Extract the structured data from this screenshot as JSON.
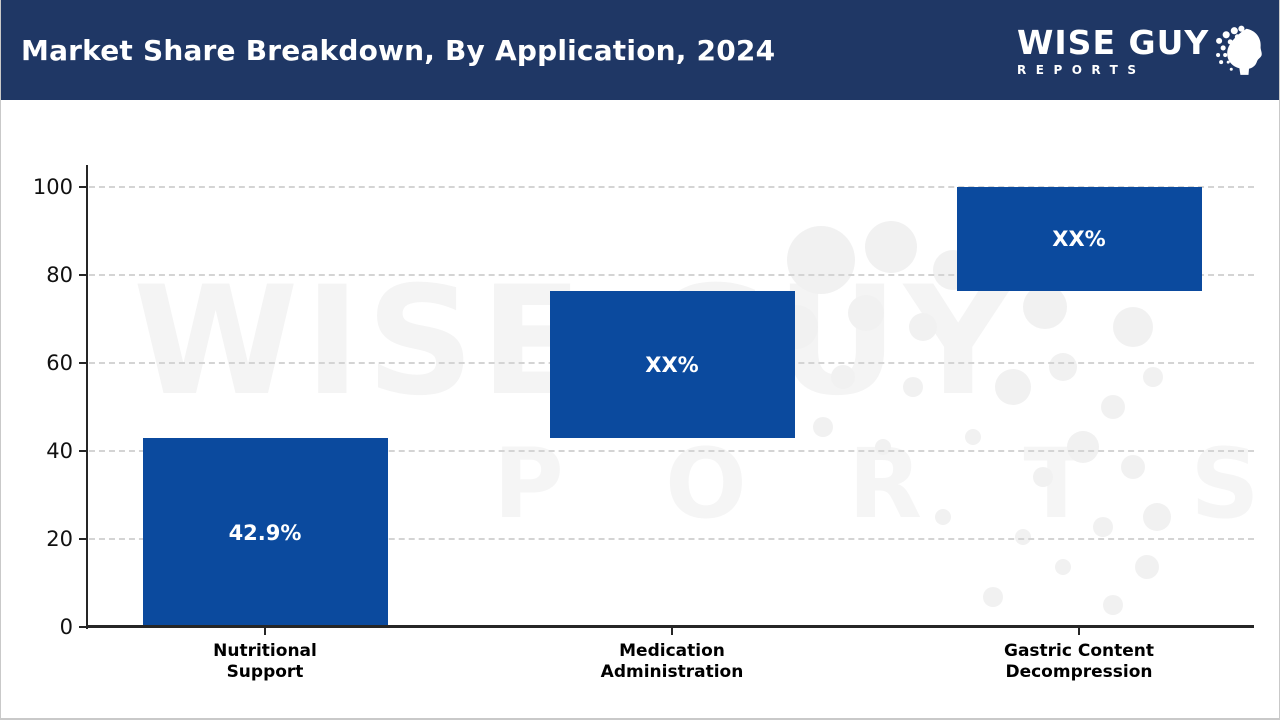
{
  "header": {
    "title": "Market Share Breakdown, By Application, 2024",
    "logo_line1": "WISE GUY",
    "logo_line2": "REPORTS"
  },
  "watermark": {
    "line1": "WISE GUY",
    "line2": "R E P O R T S"
  },
  "colors": {
    "header_bg": "#1f3765",
    "bar": "#0b4a9e",
    "bar_label": "#ffffff",
    "axis": "#262626",
    "gridline": "#d4d4d4",
    "watermark": "#f4f4f4"
  },
  "chart_data": {
    "type": "bar",
    "variant": "floating-segments",
    "title": "Market Share Breakdown, By Application, 2024",
    "categories": [
      [
        "Nutritional",
        "Support"
      ],
      [
        "Medication",
        "Administration"
      ],
      [
        "Gastric Content",
        "Decompression"
      ]
    ],
    "segments": [
      {
        "start": 0,
        "end": 42.9,
        "label": "42.9%"
      },
      {
        "start": 42.9,
        "end": 76.4,
        "label": "XX%"
      },
      {
        "start": 76.4,
        "end": 100,
        "label": "XX%"
      }
    ],
    "yticks": [
      0,
      20,
      40,
      60,
      80,
      100
    ],
    "ylim": [
      0,
      105
    ],
    "xlabel": "",
    "ylabel": "",
    "grid": "horizontal-dashed",
    "legend": "none"
  }
}
